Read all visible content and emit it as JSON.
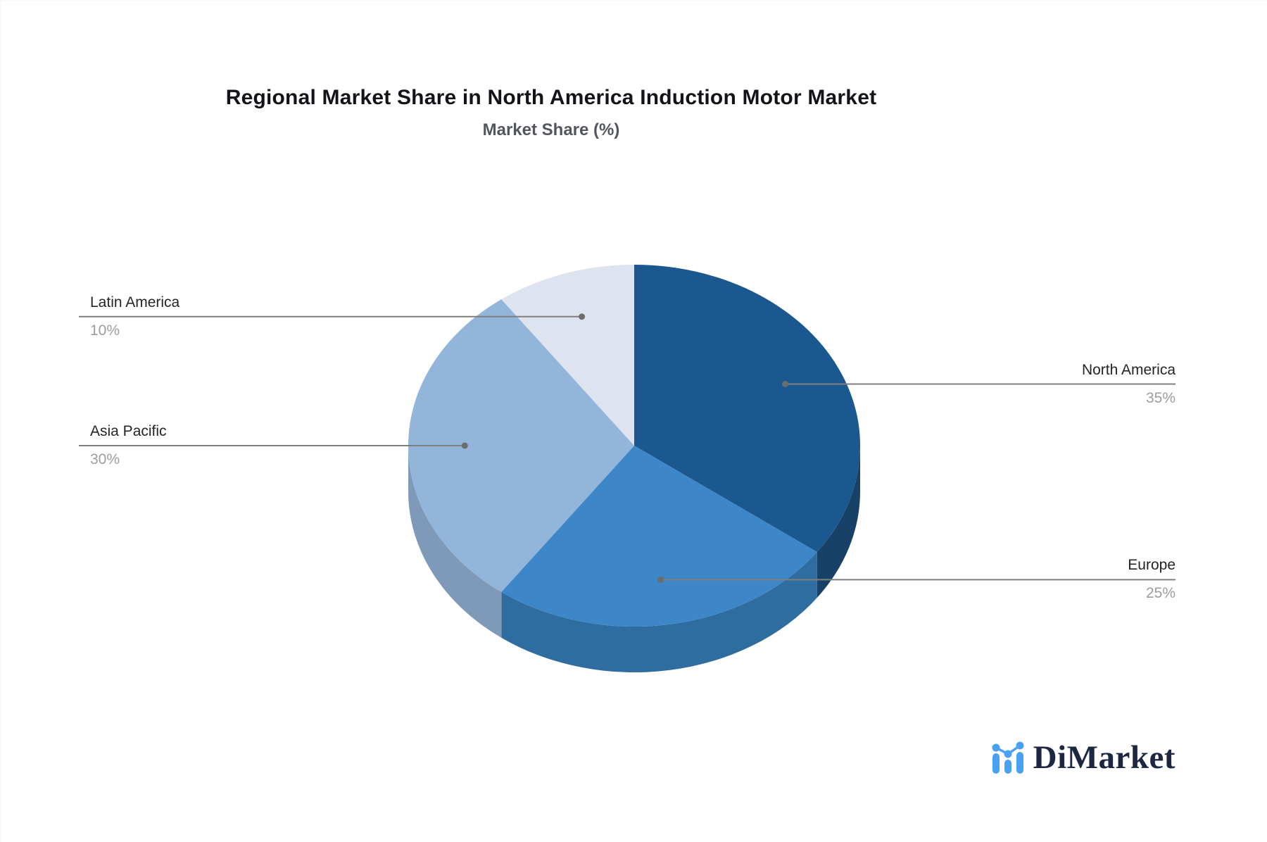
{
  "chart_data": {
    "type": "pie",
    "title": "Regional Market Share in North America Induction Motor Market",
    "subtitle": "Market Share (%)",
    "unit": "%",
    "style": "3d-pie",
    "direction": "clockwise",
    "start_angle_deg_from_top": 0,
    "legend_position": "callout-labels",
    "slices": [
      {
        "label": "North America",
        "value": 35,
        "display": "35%",
        "color": "#1c5890",
        "side_color": "#184167"
      },
      {
        "label": "Europe",
        "value": 25,
        "display": "25%",
        "color": "#3d86c8",
        "side_color": "#2f6da0"
      },
      {
        "label": "Asia Pacific",
        "value": 30,
        "display": "30%",
        "color": "#93b5da",
        "side_color": "#7e9ab8"
      },
      {
        "label": "Latin America",
        "value": 10,
        "display": "10%",
        "color": "#dde4ef",
        "side_color": "#c2cddd"
      }
    ]
  },
  "colors": {
    "background": "#ffffff",
    "title_text": "#121419",
    "subtitle_text": "#53575d",
    "label_text": "#232527",
    "percent_text": "#9b9da1",
    "leader_line": "#7f7f7f",
    "leader_dot": "#6d6d6d"
  },
  "logo": {
    "text": "DiMarket",
    "icon": "dimarket-bars-logo-icon",
    "icon_color": "#4aa0f2",
    "text_color": "#1d2742"
  }
}
